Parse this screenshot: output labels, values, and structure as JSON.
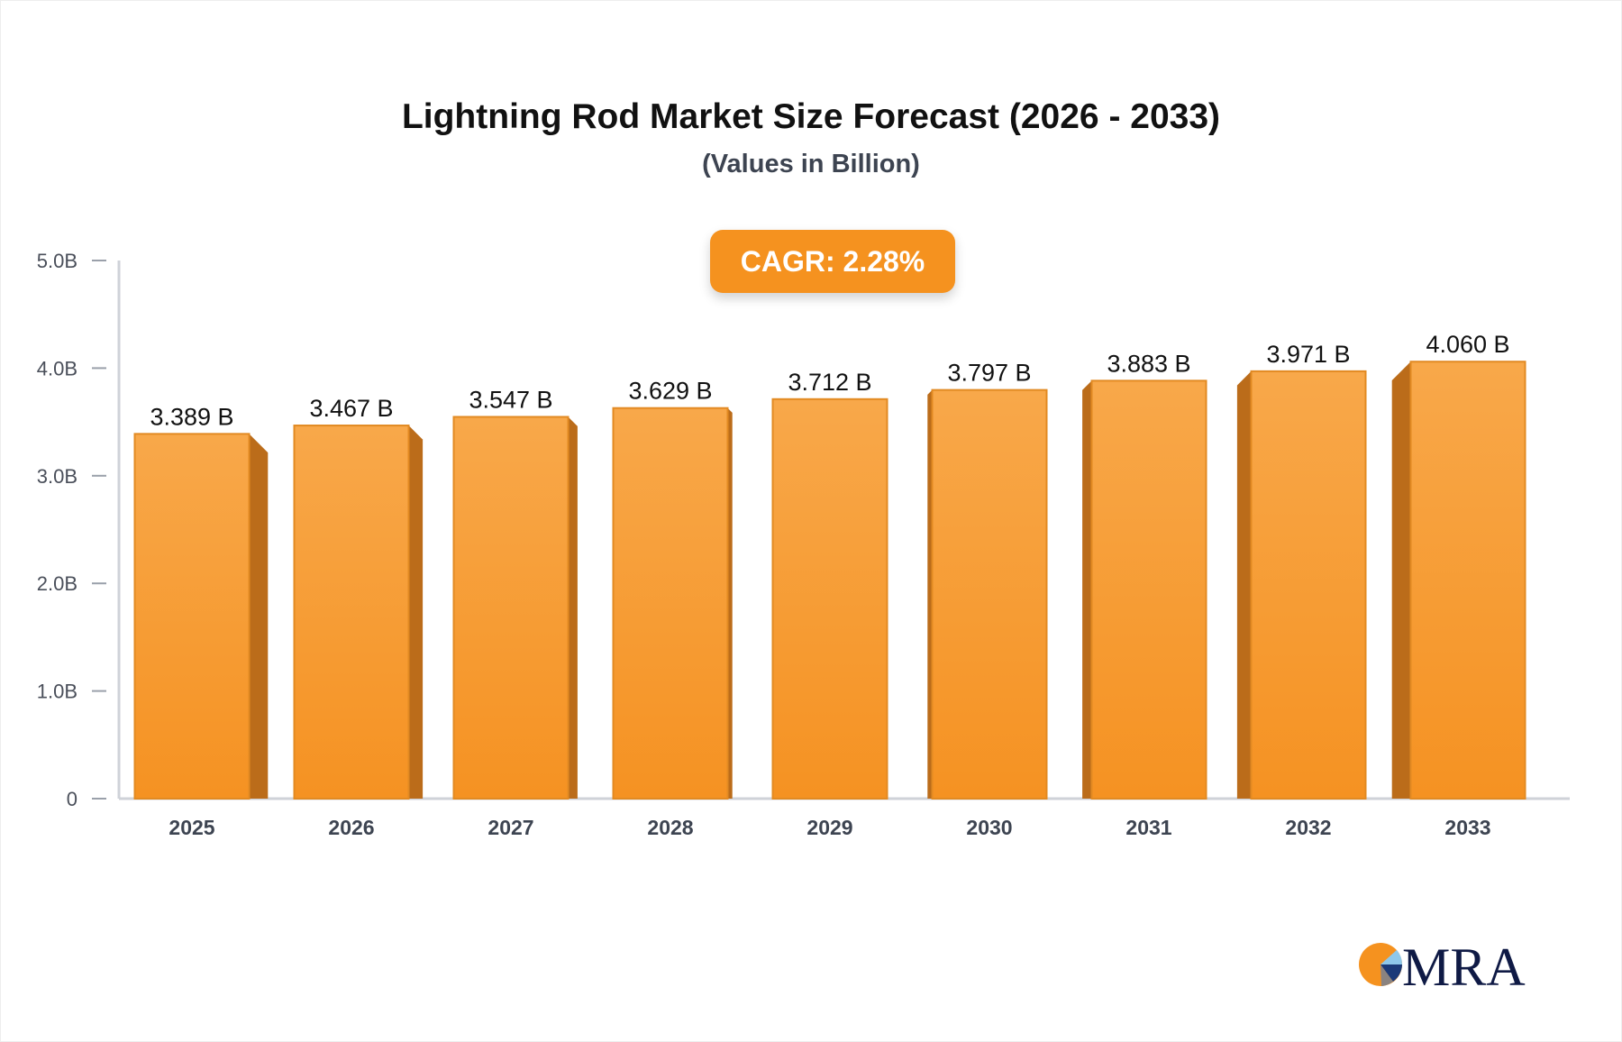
{
  "title": "Lightning Rod Market Size Forecast (2026 - 2033)",
  "subtitle": "(Values in Billion)",
  "cagr_label": "CAGR: 2.28%",
  "logo_text": "MRA",
  "colors": {
    "bar_front": "#f7a240",
    "bar_side": "#bb6c1a",
    "accent": "#f5921f",
    "axis": "#cfd2d8"
  },
  "chart_data": {
    "type": "bar",
    "categories": [
      "2025",
      "2026",
      "2027",
      "2028",
      "2029",
      "2030",
      "2031",
      "2032",
      "2033"
    ],
    "values": [
      3.389,
      3.467,
      3.547,
      3.629,
      3.712,
      3.797,
      3.883,
      3.971,
      4.06
    ],
    "data_labels": [
      "3.389 B",
      "3.467 B",
      "3.547 B",
      "3.629 B",
      "3.712 B",
      "3.797 B",
      "3.883 B",
      "3.971 B",
      "4.060 B"
    ],
    "yticks": [
      0,
      1,
      2,
      3,
      4,
      5
    ],
    "ytick_labels": [
      "0",
      "1.0B",
      "2.0B",
      "3.0B",
      "4.0B",
      "5.0B"
    ],
    "ylim": [
      0,
      5
    ],
    "grid": false,
    "title": "Lightning Rod Market Size Forecast (2026 - 2033)",
    "subtitle": "(Values in Billion)"
  }
}
